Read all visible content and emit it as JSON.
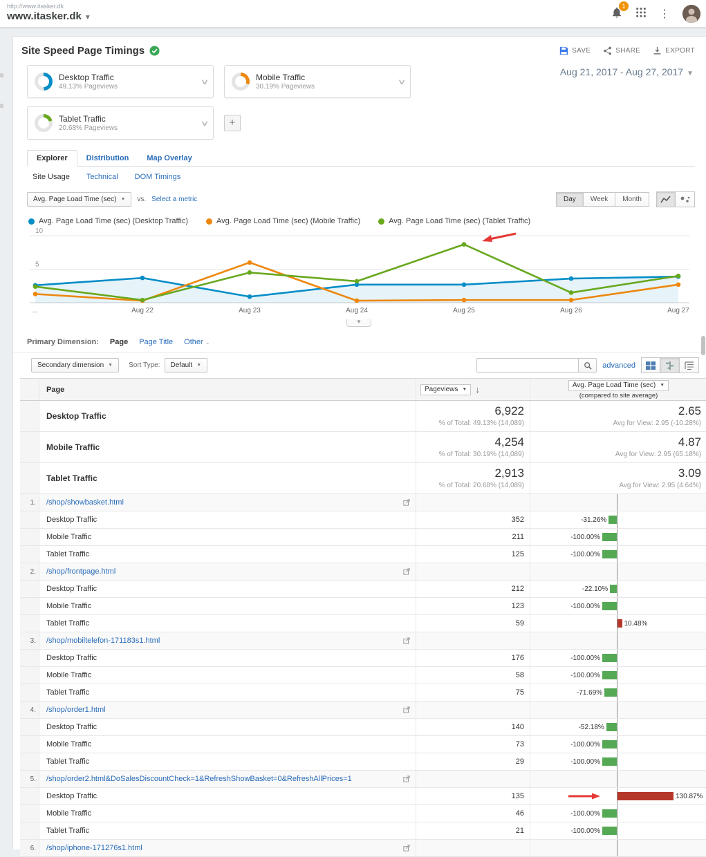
{
  "topbar": {
    "url": "http://www.itasker.dk",
    "account": "www.itasker.dk",
    "notification_badge": "1"
  },
  "header": {
    "title": "Site Speed Page Timings",
    "save_label": "SAVE",
    "share_label": "SHARE",
    "export_label": "EXPORT",
    "date_range": "Aug 21, 2017 - Aug 27, 2017"
  },
  "segments": [
    {
      "name": "Desktop Traffic",
      "sub": "49.13% Pageviews",
      "color": "#058dc7",
      "pct": 49.13
    },
    {
      "name": "Mobile Traffic",
      "sub": "30.19% Pageviews",
      "color": "#ed870e",
      "pct": 30.19
    },
    {
      "name": "Tablet Traffic",
      "sub": "20.68% Pageviews",
      "color": "#68a81e",
      "pct": 20.68
    }
  ],
  "tabs": {
    "active": "Explorer",
    "links": [
      "Distribution",
      "Map Overlay"
    ]
  },
  "subtabs": {
    "active": "Site Usage",
    "links": [
      "Technical",
      "DOM Timings"
    ]
  },
  "metric_bar": {
    "metric": "Avg. Page Load Time (sec)",
    "vs": "vs.",
    "select_metric": "Select a metric",
    "granularity": [
      "Day",
      "Week",
      "Month"
    ],
    "granularity_active": "Day"
  },
  "chart_data": {
    "type": "line",
    "x": [
      "...",
      "Aug 22",
      "Aug 23",
      "Aug 24",
      "Aug 25",
      "Aug 26",
      "Aug 27"
    ],
    "ylim": [
      0,
      10
    ],
    "yticks": [
      5,
      10
    ],
    "series": [
      {
        "name": "Avg. Page Load Time (sec) (Desktop Traffic)",
        "color": "#058dc7",
        "area": true,
        "values": [
          2.6,
          3.7,
          0.9,
          2.7,
          2.7,
          3.6,
          3.9
        ]
      },
      {
        "name": "Avg. Page Load Time (sec) (Mobile Traffic)",
        "color": "#ed870e",
        "area": false,
        "values": [
          1.3,
          0.3,
          6.0,
          0.3,
          0.4,
          0.4,
          2.7
        ]
      },
      {
        "name": "Avg. Page Load Time (sec) (Tablet Traffic)",
        "color": "#68a81e",
        "area": false,
        "values": [
          2.4,
          0.4,
          4.5,
          3.2,
          8.7,
          1.5,
          4.0
        ]
      }
    ],
    "annotation": "red arrow pointing at Tablet Traffic peak on Aug 25"
  },
  "primary_dimension": {
    "label": "Primary Dimension:",
    "active": "Page",
    "links": [
      "Page Title",
      "Other"
    ]
  },
  "toolbar": {
    "secondary_dimension": "Secondary dimension",
    "sort_type_label": "Sort Type:",
    "sort_type_value": "Default",
    "search_value": "",
    "advanced": "advanced"
  },
  "table": {
    "col_page": "Page",
    "col_pageviews": "Pageviews",
    "col_avg": "Avg. Page Load Time (sec)",
    "col_avg_sub": "(compared to site average)",
    "summary": [
      {
        "name": "Desktop Traffic",
        "pageviews": "6,922",
        "pv_sub": "% of Total: 49.13% (14,089)",
        "avg": "2.65",
        "avg_sub": "Avg for View: 2.95 (-10.28%)"
      },
      {
        "name": "Mobile Traffic",
        "pageviews": "4,254",
        "pv_sub": "% of Total: 30.19% (14,089)",
        "avg": "4.87",
        "avg_sub": "Avg for View: 2.95 (65.18%)"
      },
      {
        "name": "Tablet Traffic",
        "pageviews": "2,913",
        "pv_sub": "% of Total: 20.68% (14,089)",
        "avg": "3.09",
        "avg_sub": "Avg for View: 2.95 (4.64%)"
      }
    ],
    "rows": [
      {
        "index": "1.",
        "url": "/shop/showbasket.html",
        "segments": [
          {
            "name": "Desktop Traffic",
            "pageviews": "352",
            "pct": -31.26,
            "label": "-31.26%"
          },
          {
            "name": "Mobile Traffic",
            "pageviews": "211",
            "pct": -100.0,
            "label": "-100.00%"
          },
          {
            "name": "Tablet Traffic",
            "pageviews": "125",
            "pct": -100.0,
            "label": "-100.00%"
          }
        ]
      },
      {
        "index": "2.",
        "url": "/shop/frontpage.html",
        "segments": [
          {
            "name": "Desktop Traffic",
            "pageviews": "212",
            "pct": -22.1,
            "label": "-22.10%"
          },
          {
            "name": "Mobile Traffic",
            "pageviews": "123",
            "pct": -100.0,
            "label": "-100.00%"
          },
          {
            "name": "Tablet Traffic",
            "pageviews": "59",
            "pct": 10.48,
            "label": "10.48%"
          }
        ]
      },
      {
        "index": "3.",
        "url": "/shop/mobiltelefon-171183s1.html",
        "segments": [
          {
            "name": "Desktop Traffic",
            "pageviews": "176",
            "pct": -100.0,
            "label": "-100.00%"
          },
          {
            "name": "Mobile Traffic",
            "pageviews": "58",
            "pct": -100.0,
            "label": "-100.00%"
          },
          {
            "name": "Tablet Traffic",
            "pageviews": "75",
            "pct": -71.69,
            "label": "-71.69%"
          }
        ]
      },
      {
        "index": "4.",
        "url": "/shop/order1.html",
        "segments": [
          {
            "name": "Desktop Traffic",
            "pageviews": "140",
            "pct": -52.18,
            "label": "-52.18%"
          },
          {
            "name": "Mobile Traffic",
            "pageviews": "73",
            "pct": -100.0,
            "label": "-100.00%"
          },
          {
            "name": "Tablet Traffic",
            "pageviews": "29",
            "pct": -100.0,
            "label": "-100.00%"
          }
        ]
      },
      {
        "index": "5.",
        "url": "/shop/order2.html&DoSalesDiscountCheck=1&RefreshShowBasket=0&RefreshAllPrices=1",
        "segments": [
          {
            "name": "Desktop Traffic",
            "pageviews": "135",
            "pct": 130.87,
            "label": "130.87%",
            "arrow": true
          },
          {
            "name": "Mobile Traffic",
            "pageviews": "46",
            "pct": -100.0,
            "label": "-100.00%"
          },
          {
            "name": "Tablet Traffic",
            "pageviews": "21",
            "pct": -100.0,
            "label": "-100.00%"
          }
        ]
      },
      {
        "index": "6.",
        "url": "/shop/iphone-171276s1.html",
        "segments": []
      }
    ]
  }
}
